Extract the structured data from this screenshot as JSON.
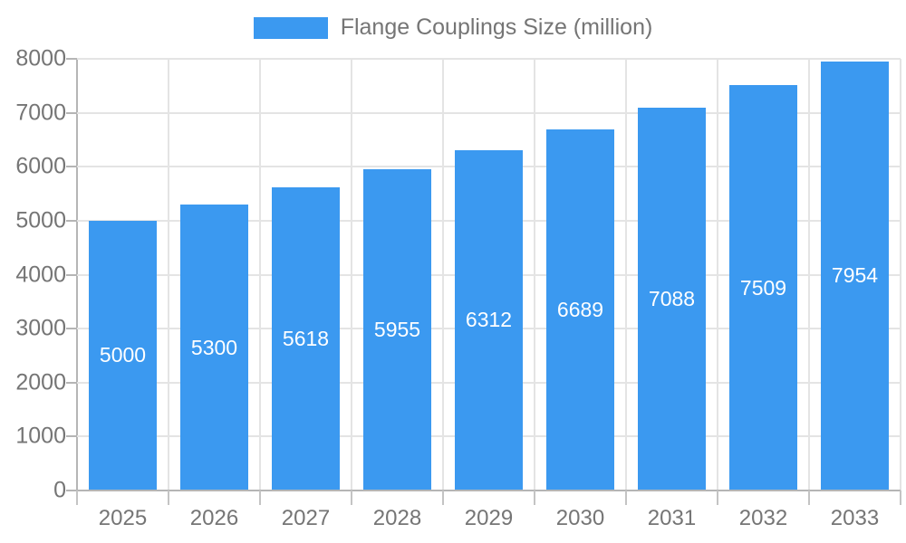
{
  "legend": {
    "label": "Flange Couplings Size (million)"
  },
  "colors": {
    "bar": "#3B99F0",
    "bar_label": "#FFFFFF",
    "axis_text": "#757575",
    "gridline": "#E4E4E4",
    "axis_line": "#B5B5B5",
    "background": "#FFFFFF"
  },
  "chart_data": {
    "type": "bar",
    "title": "",
    "xlabel": "",
    "ylabel": "",
    "series_name": "Flange Couplings Size (million)",
    "categories": [
      "2025",
      "2026",
      "2027",
      "2028",
      "2029",
      "2030",
      "2031",
      "2032",
      "2033"
    ],
    "values": [
      5000,
      5300,
      5618,
      5955,
      6312,
      6689,
      7088,
      7509,
      7954
    ],
    "data_labels_visible": true,
    "ylim": [
      0,
      8000
    ],
    "yticks": [
      0,
      1000,
      2000,
      3000,
      4000,
      5000,
      6000,
      7000,
      8000
    ],
    "grid": true,
    "legend_position": "top"
  }
}
